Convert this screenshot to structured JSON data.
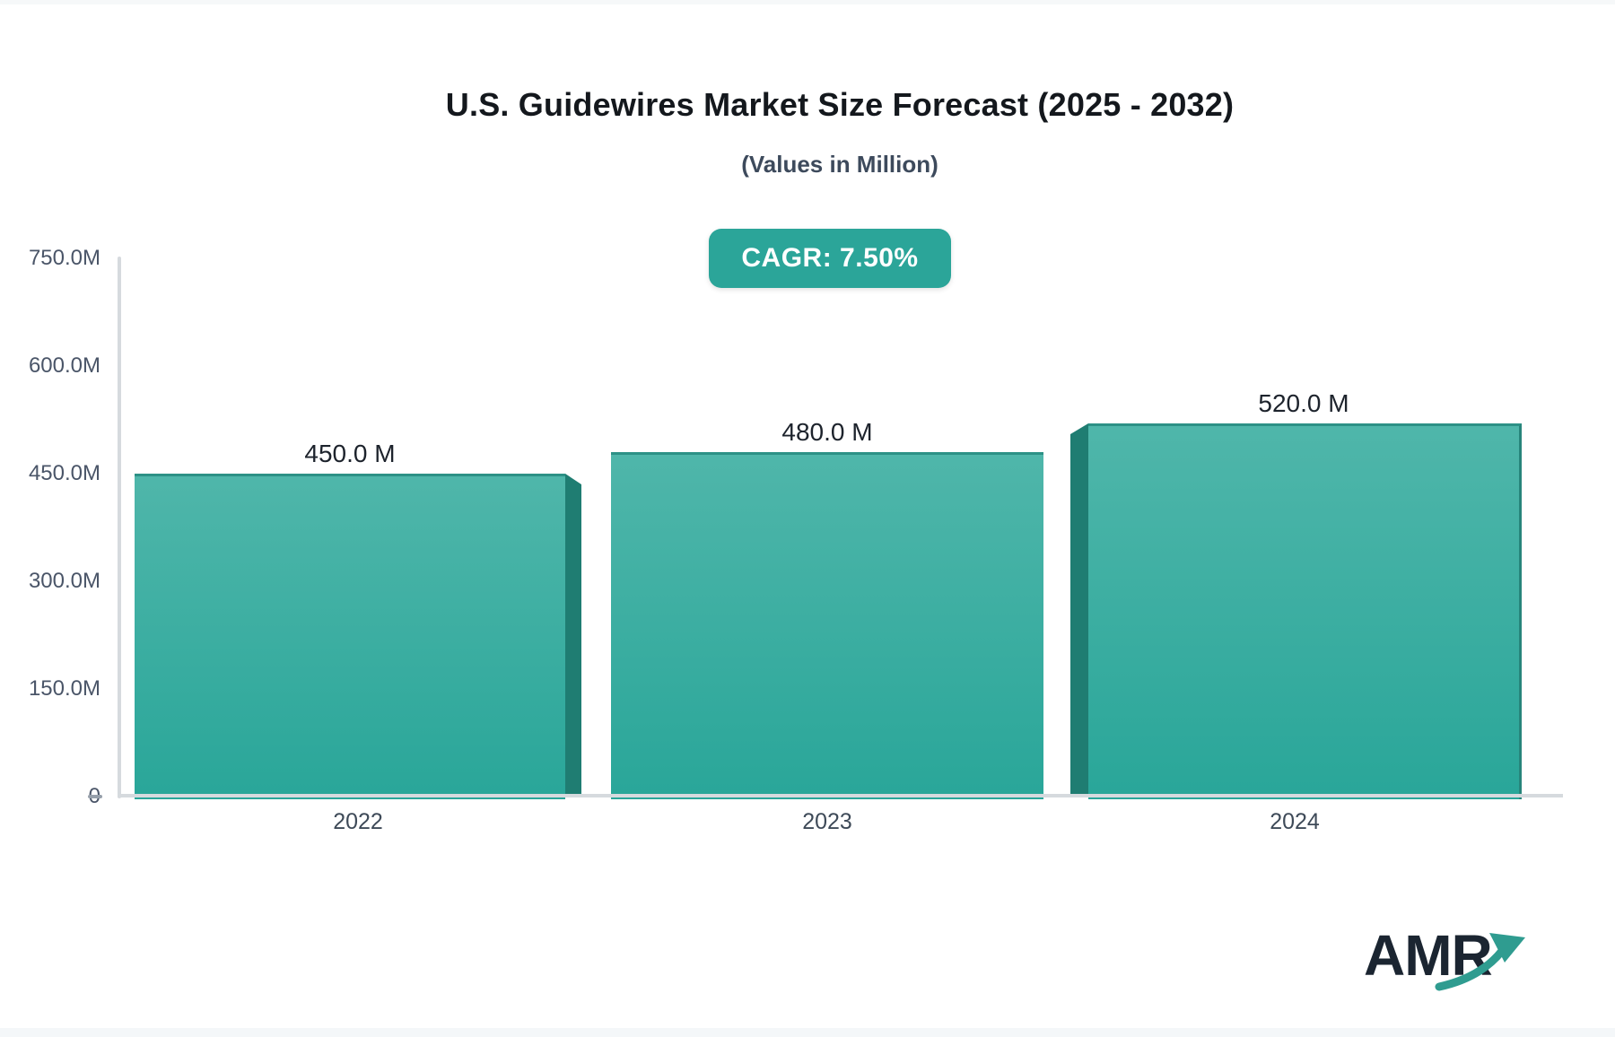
{
  "header": {
    "title": "U.S. Guidewires Market Size Forecast (2025 - 2032)",
    "subtitle": "(Values in Million)",
    "cagr_badge": "CAGR: 7.50%"
  },
  "chart_data": {
    "type": "bar",
    "title": "U.S. Guidewires Market Size Forecast (2025 - 2032)",
    "subtitle": "(Values in Million)",
    "categories": [
      "2022",
      "2023",
      "2024"
    ],
    "values": [
      450,
      480,
      520
    ],
    "value_labels": [
      "450.0 M",
      "480.0 M",
      "520.0 M"
    ],
    "y_ticks": [
      "750.0M",
      "600.0M",
      "450.0M",
      "300.0M",
      "150.0M",
      "0"
    ],
    "ylim": [
      0,
      750
    ],
    "xlabel": "",
    "ylabel": "",
    "grid": false,
    "legend_position": "none",
    "cagr_text": "CAGR: 7.50%",
    "colors": {
      "bar_top": "#4fb6aa",
      "bar_bottom": "#29a699",
      "bar_side": "#1f7d72",
      "bar_top_border": "#2d9186",
      "bar_right_border": "#27857b",
      "badge": "#2ba599",
      "axis_line": "#d6dade",
      "arrow": "#2f9c90"
    }
  },
  "logo": {
    "text": "AMR"
  }
}
